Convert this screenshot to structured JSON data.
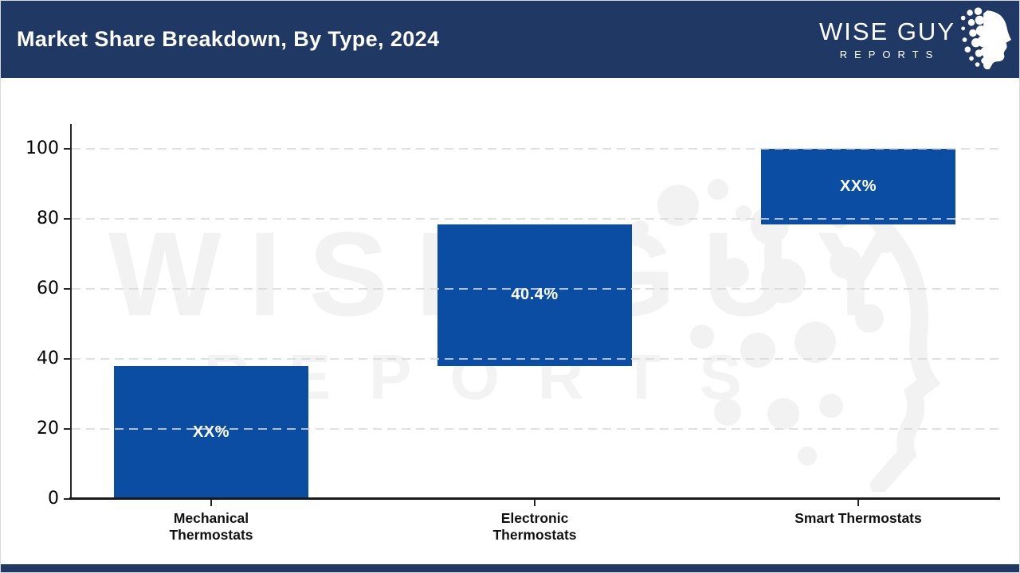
{
  "header": {
    "title": "Market Share Breakdown, By Type, 2024",
    "logo": {
      "wordmark": "WISE GUY",
      "subtitle": "REPORTS"
    }
  },
  "watermark": {
    "line1": "WISE GUY",
    "line2": "REPORTS"
  },
  "colors": {
    "header_bg": "#1F3864",
    "footer_bg": "#1F3864",
    "bar": "#0B4DA2",
    "bar_label": "#FFFFFF",
    "gridline": "#D9D9D9",
    "axis": "#262626",
    "watermark": "#F2F2F2"
  },
  "chart_data": {
    "type": "bar",
    "subtype": "waterfall",
    "title": "Market Share Breakdown, By Type, 2024",
    "categories": [
      [
        "Mechanical",
        "Thermostats"
      ],
      [
        "Electronic",
        "Thermostats"
      ],
      [
        "Smart Thermostats"
      ]
    ],
    "segments": [
      {
        "category": "Mechanical Thermostats",
        "start": 0,
        "end": 38,
        "label": "XX%"
      },
      {
        "category": "Electronic Thermostats",
        "start": 38,
        "end": 78.4,
        "label": "40.4%"
      },
      {
        "category": "Smart Thermostats",
        "start": 78.4,
        "end": 100,
        "label": "XX%"
      }
    ],
    "xlabel": "",
    "ylabel": "",
    "ylim": [
      0,
      100
    ],
    "yticks": [
      0,
      20,
      40,
      60,
      80,
      100
    ],
    "grid": "horizontal-dashed",
    "legend": "none"
  }
}
